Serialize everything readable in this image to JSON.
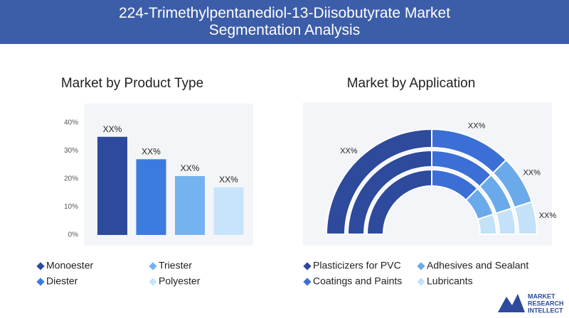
{
  "header": {
    "title": "224-Trimethylpentanediol-13-Diisobutyrate Market Segmentation Analysis"
  },
  "chart_data": [
    {
      "type": "bar",
      "title": "Market by Product Type",
      "categories": [
        "Monoester",
        "Diester",
        "Triester",
        "Polyester"
      ],
      "values": [
        35,
        27,
        21,
        17
      ],
      "value_labels": [
        "XX%",
        "XX%",
        "XX%",
        "XX%"
      ],
      "colors": [
        "#2d4a9c",
        "#3b7be0",
        "#74b3ef",
        "#c8e4fa"
      ],
      "ylim": [
        0,
        40
      ],
      "yticks": [
        {
          "value": 0,
          "label": "0%"
        },
        {
          "value": 10,
          "label": "10%"
        },
        {
          "value": 20,
          "label": "20%"
        },
        {
          "value": 30,
          "label": "30%"
        },
        {
          "value": 40,
          "label": "40%"
        }
      ]
    },
    {
      "type": "pie",
      "title": "Market by Application",
      "categories": [
        "Plasticizers for PVC",
        "Coatings and Paints",
        "Adhesives and Sealant",
        "Lubricants"
      ],
      "values": [
        50,
        25,
        15,
        10
      ],
      "value_labels": [
        "XX%",
        "XX%",
        "XX%",
        "XX%"
      ],
      "colors": [
        "#2d4a9c",
        "#3b6fd6",
        "#6aaaea",
        "#c3e1f7"
      ]
    }
  ],
  "logo": {
    "lines": [
      "MARKET",
      "RESEARCH",
      "INTELLECT"
    ]
  }
}
